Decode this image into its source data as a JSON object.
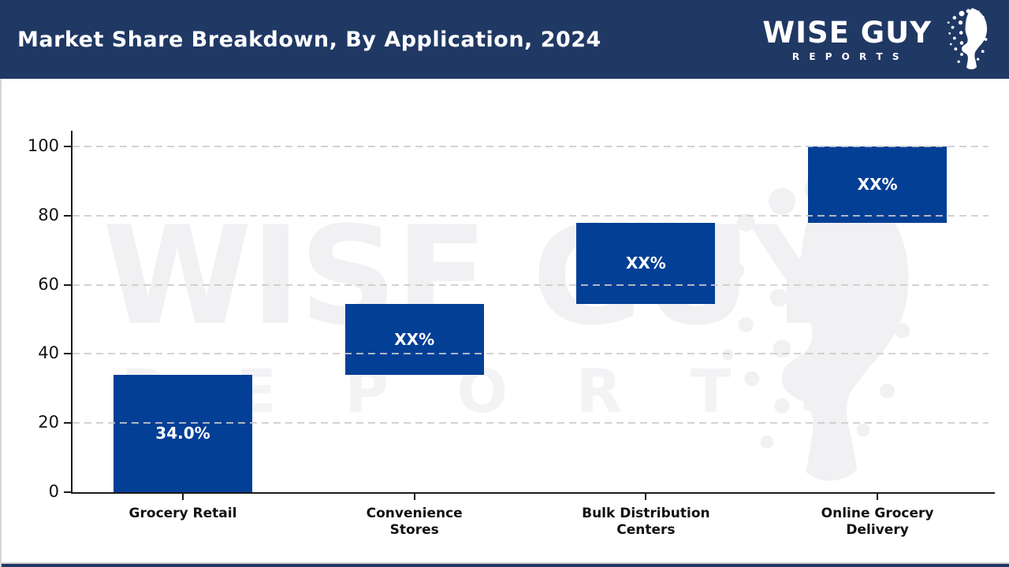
{
  "header": {
    "title": "Market Share Breakdown, By Application, 2024",
    "brand": {
      "line1": "WISE GUY",
      "line2": "R E P O R T S"
    }
  },
  "watermark": {
    "line1": "WISE GUY",
    "line2": "R E P O R T S"
  },
  "colors": {
    "header_bg": "#203864",
    "bar_blue": "#043f96",
    "grid_gray": "#cbcbcb",
    "watermark_gray": "#f1f1f3"
  },
  "chart_data": {
    "type": "bar",
    "subtype": "waterfall",
    "title": "Market Share Breakdown, By Application, 2024",
    "categories": [
      "Grocery Retail",
      "Convenience Stores",
      "Bulk Distribution Centers",
      "Online Grocery Delivery"
    ],
    "segments": [
      {
        "category": "Grocery Retail",
        "start": 0,
        "end": 34,
        "label": "34.0%",
        "value": 34.0
      },
      {
        "category": "Convenience Stores",
        "start": 34,
        "end": 54.5,
        "label": "XX%"
      },
      {
        "category": "Bulk Distribution Centers",
        "start": 54.5,
        "end": 78,
        "label": "XX%"
      },
      {
        "category": "Online Grocery Delivery",
        "start": 78,
        "end": 100,
        "label": "XX%"
      }
    ],
    "ylim": [
      0,
      100
    ],
    "yticks": [
      0,
      20,
      40,
      60,
      80,
      100
    ],
    "xlabel": "",
    "ylabel": "",
    "grid": "horizontal-dashed",
    "legend_position": "none",
    "bar_color": "#043f96",
    "bar_label_color": "#ffffff"
  }
}
